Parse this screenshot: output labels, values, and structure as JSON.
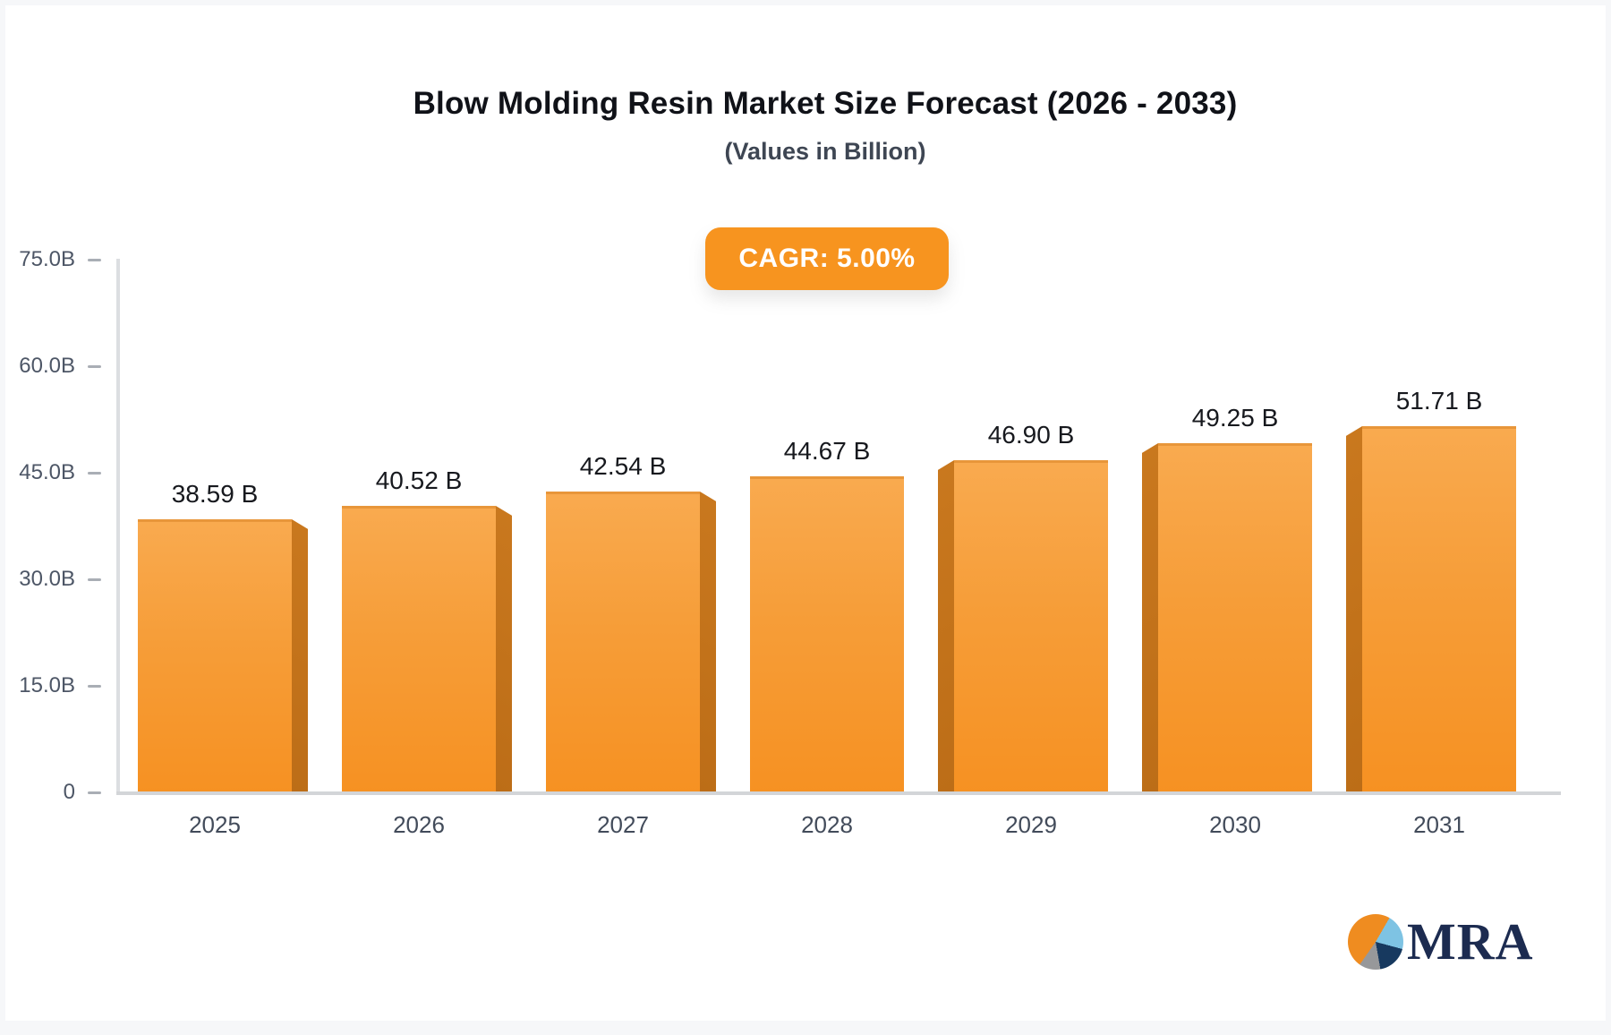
{
  "header": {
    "title": "Blow Molding Resin Market Size Forecast (2026 - 2033)",
    "subtitle": "(Values in Billion)"
  },
  "badge": {
    "label": "CAGR: 5.00%",
    "background": "#f7941f",
    "text_color": "#ffffff"
  },
  "chart_data": {
    "type": "bar",
    "style": "3d-perspective-columns",
    "title": "Blow Molding Resin Market Size Forecast (2026 - 2033)",
    "subtitle": "(Values in Billion)",
    "categories": [
      "2025",
      "2026",
      "2027",
      "2028",
      "2029",
      "2030",
      "2031"
    ],
    "values": [
      38.59,
      40.52,
      42.54,
      44.67,
      46.9,
      49.25,
      51.71
    ],
    "value_labels": [
      "38.59 B",
      "40.52 B",
      "42.54 B",
      "44.67 B",
      "46.90 B",
      "49.25 B",
      "51.71 B"
    ],
    "y_ticks": [
      {
        "label": "75.0B",
        "value": 75
      },
      {
        "label": "60.0B",
        "value": 60
      },
      {
        "label": "45.0B",
        "value": 45
      },
      {
        "label": "30.0B",
        "value": 30
      },
      {
        "label": "15.0B",
        "value": 15
      },
      {
        "label": "0",
        "value": 0
      }
    ],
    "ylim": [
      0,
      75
    ],
    "xlabel": "",
    "ylabel": "",
    "grid": false,
    "legend": false,
    "annotation": "CAGR: 5.00%",
    "colors": {
      "bar_face_top": "#f9aa4f",
      "bar_face_bottom": "#f69122",
      "bar_side": "#bf6f1a",
      "axis_line": "#d3d5d8",
      "tick_text": "#4d5666"
    }
  },
  "logo": {
    "text": "MRA",
    "pie_colors": {
      "orange": "#ef8c20",
      "light_blue": "#7ec3e3",
      "navy": "#17395f",
      "gray": "#97989a"
    }
  }
}
